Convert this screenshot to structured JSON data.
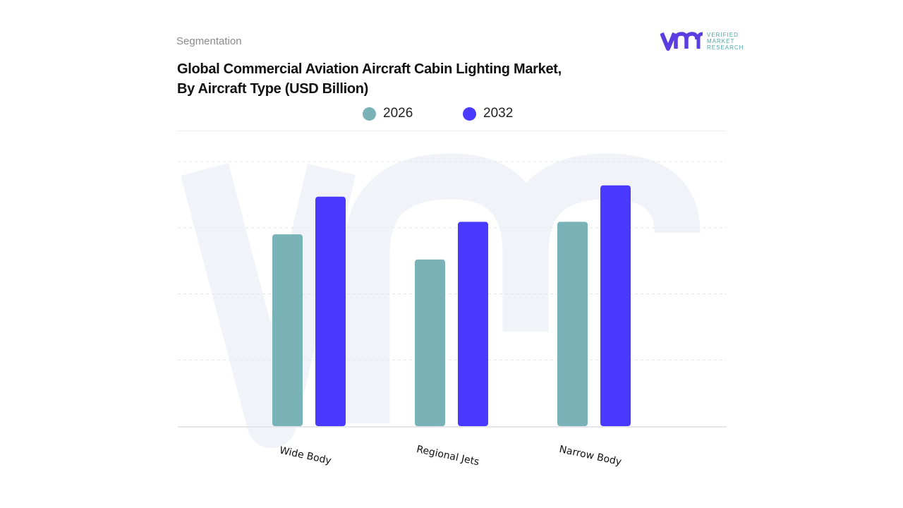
{
  "header": {
    "section": "Segmentation",
    "title_line1": "Global Commercial Aviation Aircraft Cabin Lighting Market,",
    "title_line2": "By Aircraft Type (USD Billion)"
  },
  "logo": {
    "line1": "VERIFIED",
    "line2": "MARKET",
    "line3": "RESEARCH"
  },
  "colors": {
    "s2026": "#7ab3b7",
    "s2032": "#4a3aff",
    "grid": "#e4e6ea",
    "watermark": "#f1f3f9"
  },
  "chart_data": {
    "type": "bar",
    "categories": [
      "Wide Body",
      "Regional Jets",
      "Narrow Body"
    ],
    "series": [
      {
        "name": "2026",
        "values": [
          2.9,
          2.52,
          3.09
        ]
      },
      {
        "name": "2032",
        "values": [
          3.47,
          3.09,
          3.64
        ]
      }
    ],
    "ylim": [
      0,
      4
    ],
    "grid": true,
    "legend": "top-center",
    "note_units": "relative (no y-axis ticks printed)"
  }
}
